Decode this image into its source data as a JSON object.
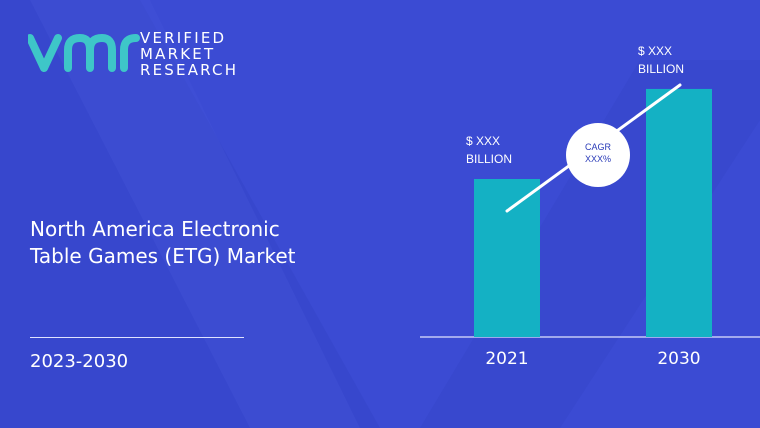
{
  "brand": {
    "line1": "VERIFIED",
    "line2": "MARKET",
    "line3": "RESEARCH",
    "logo_color": "#3ec6c8"
  },
  "report": {
    "title_line1": "North America Electronic",
    "title_line2": "Table Games (ETG) Market",
    "period": "2023-2030"
  },
  "colors": {
    "background": "#3b4bd3",
    "bar": "#14b1c4",
    "axis": "#dfe3ff"
  },
  "chart_data": {
    "type": "bar",
    "categories": [
      "2021",
      "2030"
    ],
    "values": [
      1,
      1.57
    ],
    "value_labels": [
      {
        "line1": "$ XXX",
        "line2": "BILLION"
      },
      {
        "line1": "$ XXX",
        "line2": "BILLION"
      }
    ],
    "cagr": {
      "line1": "CAGR",
      "line2": "XXX%"
    },
    "title": "",
    "xlabel": "",
    "ylabel": ""
  }
}
